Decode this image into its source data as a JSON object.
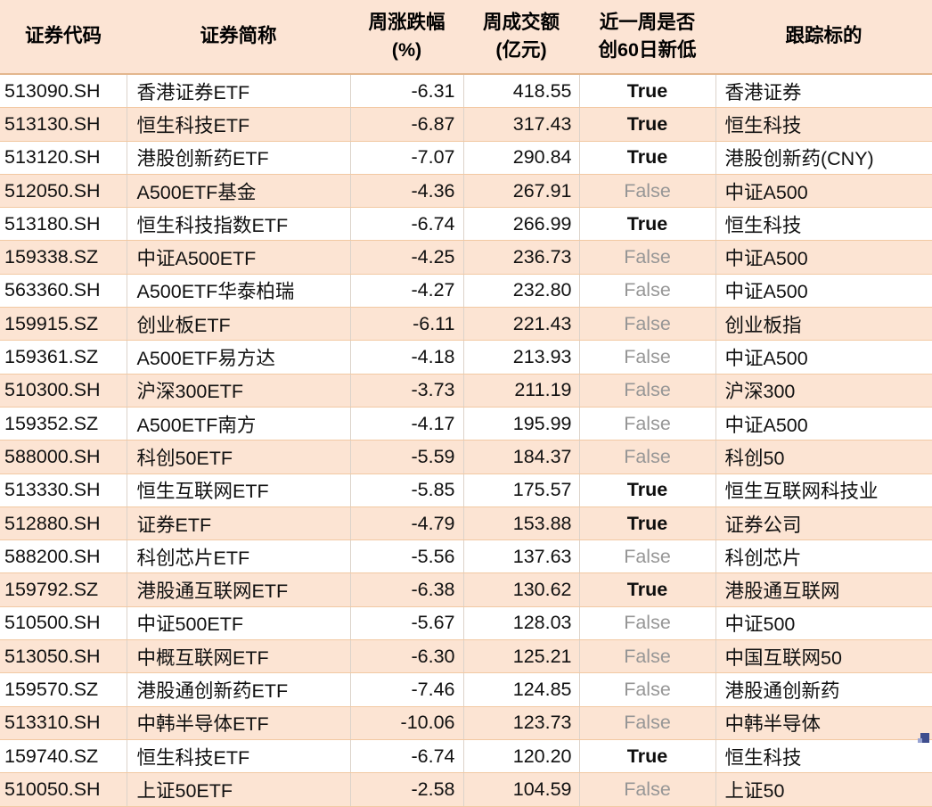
{
  "table": {
    "headers": [
      {
        "label": "证券代码"
      },
      {
        "label": "证券简称"
      },
      {
        "label": "周涨跌幅\n(%)"
      },
      {
        "label": "周成交额\n(亿元)"
      },
      {
        "label": "近一周是否\n创60日新低"
      },
      {
        "label": "跟踪标的"
      }
    ]
  },
  "chart_data": {
    "type": "table",
    "columns": [
      "证券代码",
      "证券简称",
      "周涨跌幅(%)",
      "周成交额(亿元)",
      "近一周是否创60日新低",
      "跟踪标的"
    ],
    "rows": [
      [
        "513090.SH",
        "香港证券ETF",
        "-6.31",
        "418.55",
        "True",
        "香港证券"
      ],
      [
        "513130.SH",
        "恒生科技ETF",
        "-6.87",
        "317.43",
        "True",
        "恒生科技"
      ],
      [
        "513120.SH",
        "港股创新药ETF",
        "-7.07",
        "290.84",
        "True",
        "港股创新药(CNY)"
      ],
      [
        "512050.SH",
        "A500ETF基金",
        "-4.36",
        "267.91",
        "False",
        "中证A500"
      ],
      [
        "513180.SH",
        "恒生科技指数ETF",
        "-6.74",
        "266.99",
        "True",
        "恒生科技"
      ],
      [
        "159338.SZ",
        "中证A500ETF",
        "-4.25",
        "236.73",
        "False",
        "中证A500"
      ],
      [
        "563360.SH",
        "A500ETF华泰柏瑞",
        "-4.27",
        "232.80",
        "False",
        "中证A500"
      ],
      [
        "159915.SZ",
        "创业板ETF",
        "-6.11",
        "221.43",
        "False",
        "创业板指"
      ],
      [
        "159361.SZ",
        "A500ETF易方达",
        "-4.18",
        "213.93",
        "False",
        "中证A500"
      ],
      [
        "510300.SH",
        "沪深300ETF",
        "-3.73",
        "211.19",
        "False",
        "沪深300"
      ],
      [
        "159352.SZ",
        "A500ETF南方",
        "-4.17",
        "195.99",
        "False",
        "中证A500"
      ],
      [
        "588000.SH",
        "科创50ETF",
        "-5.59",
        "184.37",
        "False",
        "科创50"
      ],
      [
        "513330.SH",
        "恒生互联网ETF",
        "-5.85",
        "175.57",
        "True",
        "恒生互联网科技业"
      ],
      [
        "512880.SH",
        "证券ETF",
        "-4.79",
        "153.88",
        "True",
        "证券公司"
      ],
      [
        "588200.SH",
        "科创芯片ETF",
        "-5.56",
        "137.63",
        "False",
        "科创芯片"
      ],
      [
        "159792.SZ",
        "港股通互联网ETF",
        "-6.38",
        "130.62",
        "True",
        "港股通互联网"
      ],
      [
        "510500.SH",
        "中证500ETF",
        "-5.67",
        "128.03",
        "False",
        "中证500"
      ],
      [
        "513050.SH",
        "中概互联网ETF",
        "-6.30",
        "125.21",
        "False",
        "中国互联网50"
      ],
      [
        "159570.SZ",
        "港股通创新药ETF",
        "-7.46",
        "124.85",
        "False",
        "港股通创新药"
      ],
      [
        "513310.SH",
        "中韩半导体ETF",
        "-10.06",
        "123.73",
        "False",
        "中韩半导体"
      ],
      [
        "159740.SZ",
        "恒生科技ETF",
        "-6.74",
        "120.20",
        "True",
        "恒生科技"
      ],
      [
        "510050.SH",
        "上证50ETF",
        "-2.58",
        "104.59",
        "False",
        "上证50"
      ]
    ]
  },
  "colors": {
    "header_bg": "#fce4d4",
    "row_shade_bg": "#fce4d3",
    "row_border": "#f2c9a3",
    "column_border": "#dcd3ca",
    "true_text": "#0d0d0d",
    "false_text": "#969696",
    "corner_mark_dark": "#3f4e8e",
    "corner_mark_light": "#97a3d2"
  }
}
